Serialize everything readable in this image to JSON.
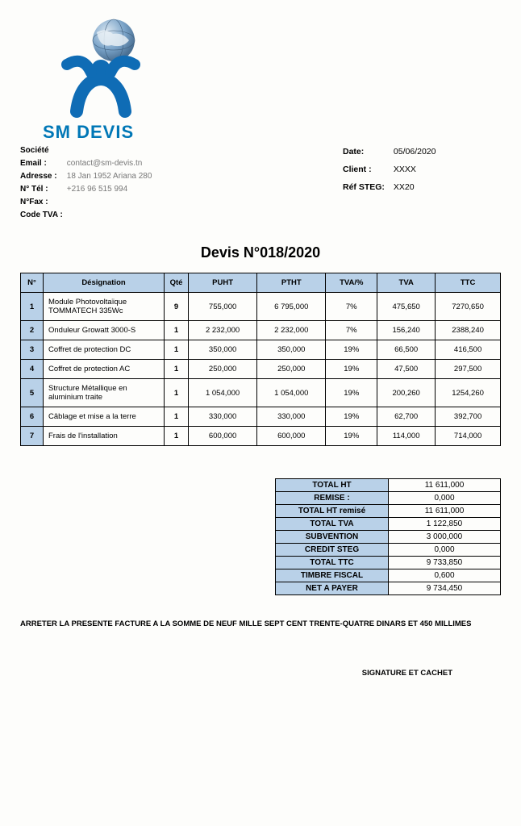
{
  "brand": "SM DEVIS",
  "company": {
    "labels": {
      "societe": "Société",
      "email": "Email :",
      "adresse": "Adresse :",
      "tel": "N° Tél :",
      "fax": "N°Fax :",
      "codetva": "Code TVA :"
    },
    "email": "contact@sm-devis.tn",
    "adresse": "18 Jan 1952 Ariana 280",
    "tel": "+216 96 515 994"
  },
  "header": {
    "date_label": "Date:",
    "date": "05/06/2020",
    "client_label": "Client :",
    "client": "XXXX",
    "refsteg_label": "Réf STEG:",
    "refsteg": "XX20"
  },
  "title": "Devis  N°018/2020",
  "columns": [
    "N°",
    "Désignation",
    "Qté",
    "PUHT",
    "PTHT",
    "TVA/%",
    "TVA",
    "TTC"
  ],
  "rows": [
    {
      "n": "1",
      "d": "Module Photovoltaïque TOMMATECH  335Wc",
      "q": "9",
      "puht": "755,000",
      "ptht": "6 795,000",
      "tvap": "7%",
      "tva": "475,650",
      "ttc": "7270,650"
    },
    {
      "n": "2",
      "d": "Onduleur Growatt 3000-S",
      "q": "1",
      "puht": "2 232,000",
      "ptht": "2 232,000",
      "tvap": "7%",
      "tva": "156,240",
      "ttc": "2388,240"
    },
    {
      "n": "3",
      "d": "Coffret de protection DC",
      "q": "1",
      "puht": "350,000",
      "ptht": "350,000",
      "tvap": "19%",
      "tva": "66,500",
      "ttc": "416,500"
    },
    {
      "n": "4",
      "d": "Coffret de protection AC",
      "q": "1",
      "puht": "250,000",
      "ptht": "250,000",
      "tvap": "19%",
      "tva": "47,500",
      "ttc": "297,500"
    },
    {
      "n": "5",
      "d": "Structure Métallique en aluminium traite",
      "q": "1",
      "puht": "1 054,000",
      "ptht": "1 054,000",
      "tvap": "19%",
      "tva": "200,260",
      "ttc": "1254,260"
    },
    {
      "n": "6",
      "d": "Câblage et mise a la terre",
      "q": "1",
      "puht": "330,000",
      "ptht": "330,000",
      "tvap": "19%",
      "tva": "62,700",
      "ttc": "392,700"
    },
    {
      "n": "7",
      "d": "Frais de l'installation",
      "q": "1",
      "puht": "600,000",
      "ptht": "600,000",
      "tvap": "19%",
      "tva": "114,000",
      "ttc": "714,000"
    }
  ],
  "totals": [
    {
      "l": "TOTAL HT",
      "v": "11 611,000"
    },
    {
      "l": "REMISE :",
      "v": "0,000"
    },
    {
      "l": "TOTAL HT remisé",
      "v": "11 611,000"
    },
    {
      "l": "TOTAL TVA",
      "v": "1 122,850"
    },
    {
      "l": "SUBVENTION",
      "v": "3 000,000"
    },
    {
      "l": "CREDIT STEG",
      "v": "0,000"
    },
    {
      "l": "TOTAL TTC",
      "v": "9 733,850"
    },
    {
      "l": "TIMBRE FISCAL",
      "v": "0,600"
    },
    {
      "l": "NET A PAYER",
      "v": "9 734,450"
    }
  ],
  "footer_text": "ARRETER LA PRESENTE FACTURE A LA SOMME DE NEUF MILLE SEPT CENT TRENTE-QUATRE  DINARS ET 450 MILLIMES",
  "signature": "SIGNATURE ET CACHET",
  "colors": {
    "brand_blue": "#0077b6",
    "head_bg": "#b9d1e8",
    "border": "#000000",
    "page_bg": "#fdfdfb"
  }
}
